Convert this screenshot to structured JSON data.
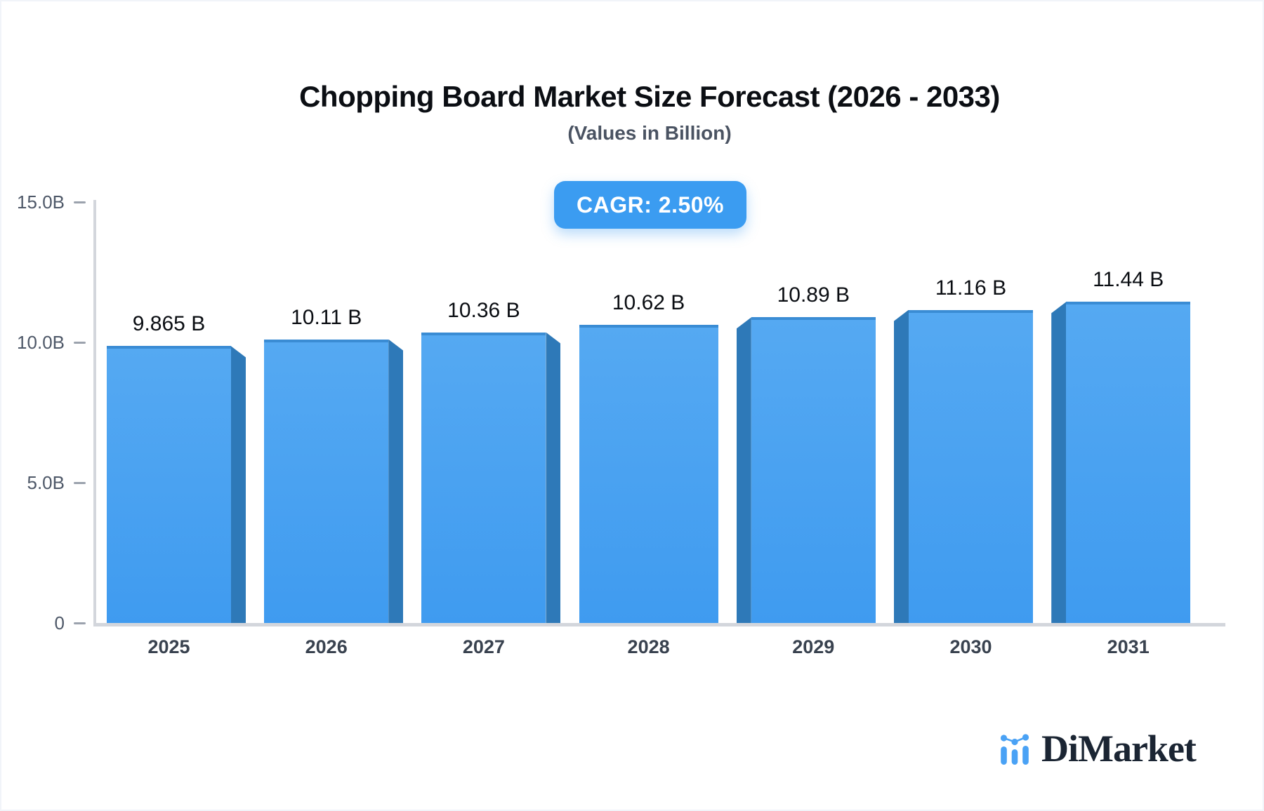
{
  "header": {
    "title": "Chopping Board Market Size Forecast (2026 - 2033)",
    "subtitle": "(Values in Billion)"
  },
  "badge": {
    "label": "CAGR: 2.50%",
    "color": "#3b9cf1"
  },
  "brand": {
    "name": "DiMarket",
    "icon": "bar-line-chart-icon",
    "text_color": "#1b2533",
    "icon_color": "#4aa2f5"
  },
  "chart_data": {
    "type": "bar",
    "title": "Chopping Board Market Size Forecast (2026 - 2033)",
    "subtitle": "(Values in Billion)",
    "categories": [
      "2025",
      "2026",
      "2027",
      "2028",
      "2029",
      "2030",
      "2031"
    ],
    "values": [
      9.865,
      10.11,
      10.36,
      10.62,
      10.89,
      11.16,
      11.44
    ],
    "value_labels": [
      "9.865 B",
      "10.11 B",
      "10.36 B",
      "10.62 B",
      "10.89 B",
      "11.16 B",
      "11.44 B"
    ],
    "xlabel": "",
    "ylabel": "",
    "ylim": [
      0,
      15
    ],
    "yticks": [
      {
        "value": 0,
        "label": "0"
      },
      {
        "value": 5,
        "label": "5.0B"
      },
      {
        "value": 10,
        "label": "10.0B"
      },
      {
        "value": 15,
        "label": "15.0B"
      }
    ],
    "grid": false,
    "legend": false,
    "bar_color_top": "#55a9f2",
    "bar_color_bottom": "#3f9bf0",
    "bar_side_color": "#2e79b8",
    "axis_color": "#d3d6dc"
  }
}
